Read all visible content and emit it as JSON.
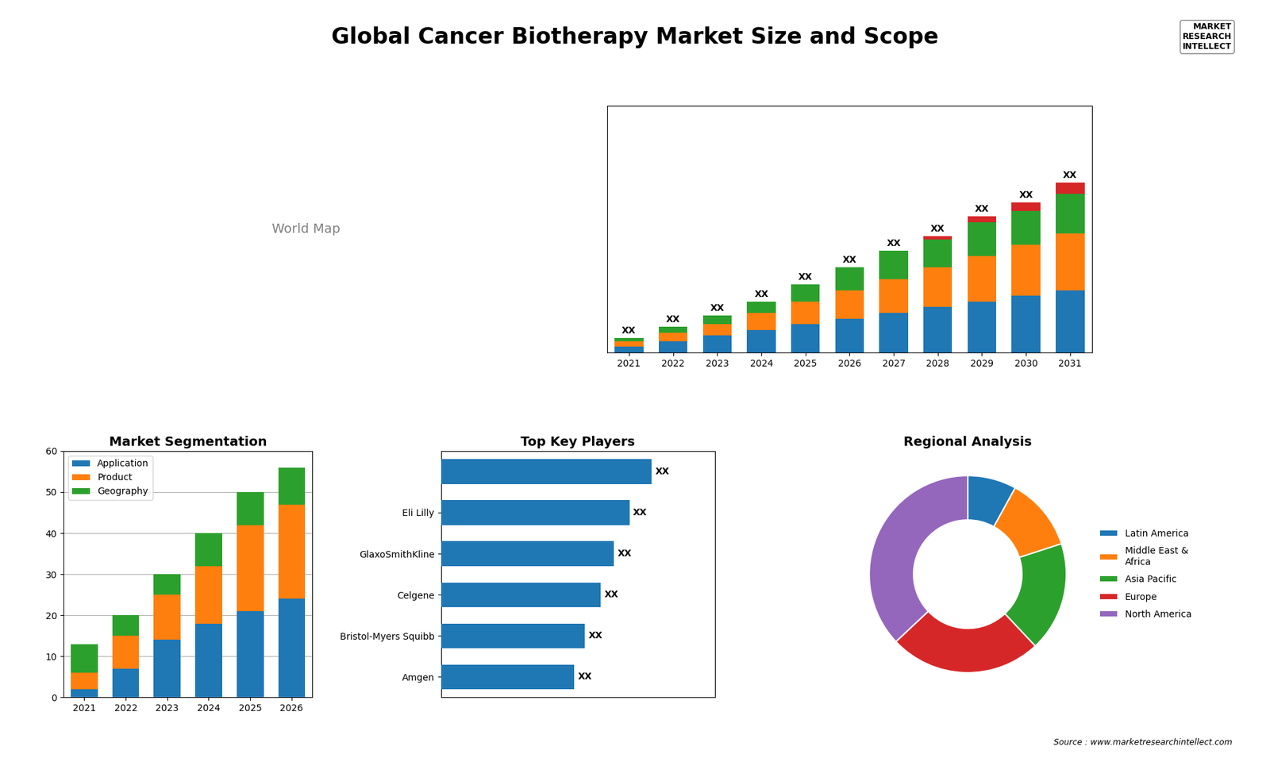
{
  "title": "Global Cancer Biotherapy Market Size and Scope",
  "annotations": [
    "World Map",
    "MARKET\nRESEARCH\nINTELLECT",
    "Source : www.marketresearchintellect.com"
  ],
  "chart_data": [
    {
      "type": "bar",
      "stacked": true,
      "categories": [
        "2021",
        "2022",
        "2023",
        "2024",
        "2025",
        "2026",
        "2027",
        "2028",
        "2029",
        "2030",
        "2031"
      ],
      "series": [
        {
          "values": [
            1,
            2,
            3,
            4,
            5,
            6,
            7,
            8,
            9,
            10,
            11
          ]
        },
        {
          "values": [
            1,
            1.5,
            2,
            3,
            4,
            5,
            6,
            7,
            8,
            9,
            10
          ]
        },
        {
          "values": [
            0.5,
            1,
            1.5,
            2,
            3,
            4,
            5,
            5,
            6,
            6,
            7
          ]
        },
        {
          "values": [
            0,
            0,
            0,
            0,
            0,
            0,
            0,
            0.5,
            1,
            1.5,
            2
          ]
        }
      ],
      "ylim": [
        0,
        43.5
      ],
      "tick_labels": "x",
      "data_labels": true,
      "value_labels": [
        "XX",
        "XX",
        "XX",
        "XX",
        "XX",
        "XX",
        "XX",
        "XX",
        "XX",
        "XX",
        "XX"
      ]
    },
    {
      "type": "bar",
      "stacked": true,
      "title": "Market Segmentation",
      "categories": [
        "2021",
        "2022",
        "2023",
        "2024",
        "2025",
        "2026"
      ],
      "series": [
        {
          "name": "Application",
          "values": [
            2,
            7,
            14,
            18,
            21,
            24
          ]
        },
        {
          "name": "Product",
          "values": [
            4,
            8,
            11,
            14,
            21,
            23
          ]
        },
        {
          "name": "Geography",
          "values": [
            7,
            5,
            5,
            8,
            8,
            9
          ]
        }
      ],
      "ylim": [
        0,
        60
      ],
      "yticks": [
        0,
        10,
        20,
        30,
        40,
        50,
        60
      ],
      "grid": true,
      "legend": "upper left"
    },
    {
      "type": "bar",
      "orientation": "horizontal",
      "title": "Top Key Players",
      "categories": [
        null,
        "Eli Lilly",
        "GlaxoSmithKline",
        "Celgene",
        "Bristol-Myers Squibb",
        "Amgen"
      ],
      "values": [
        9.5,
        8.5,
        7.8,
        7.2,
        6.5,
        6.0
      ],
      "xlim": [
        0,
        12.35
      ],
      "tick_labels": "y",
      "data_labels": true,
      "value_labels": [
        "XX",
        "XX",
        "XX",
        "XX",
        "XX",
        "XX"
      ]
    },
    {
      "type": "pie",
      "title": "Regional Analysis",
      "categories": [
        "Latin America",
        "Middle East &\nAfrica",
        "Asia Pacific",
        "Europe",
        "North America"
      ],
      "values": [
        8,
        12,
        18,
        25,
        37
      ],
      "legend": "center left"
    }
  ]
}
